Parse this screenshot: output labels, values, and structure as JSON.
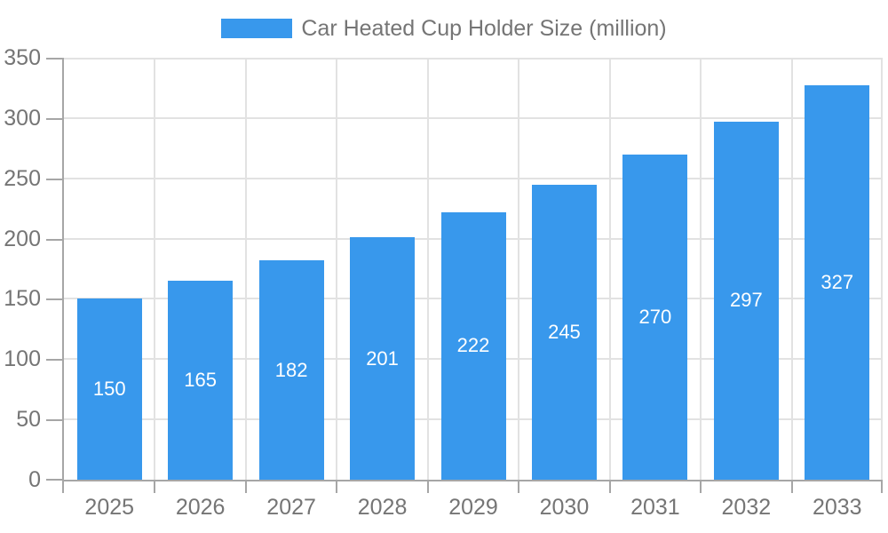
{
  "legend": {
    "label": "Car Heated Cup Holder Size (million)"
  },
  "chart_data": {
    "type": "bar",
    "title": "Car Heated Cup Holder Size (million)",
    "categories": [
      "2025",
      "2026",
      "2027",
      "2028",
      "2029",
      "2030",
      "2031",
      "2032",
      "2033"
    ],
    "series": [
      {
        "name": "Car Heated Cup Holder Size (million)",
        "values": [
          150,
          165,
          182,
          201,
          222,
          245,
          270,
          297,
          327
        ]
      }
    ],
    "xlabel": "",
    "ylabel": "",
    "ylim": [
      0,
      350
    ],
    "yticks": [
      0,
      50,
      100,
      150,
      200,
      250,
      300,
      350
    ],
    "grid": true,
    "legend_position": "top",
    "value_labels": "inside-center",
    "colors": {
      "bar": "#3898EC",
      "value_label": "#FFFFFF",
      "axis": "#A6A6A6",
      "gridline": "#E2E2E2",
      "tick_label": "#757575",
      "legend_text": "#757575",
      "background": "#FFFFFF"
    }
  }
}
